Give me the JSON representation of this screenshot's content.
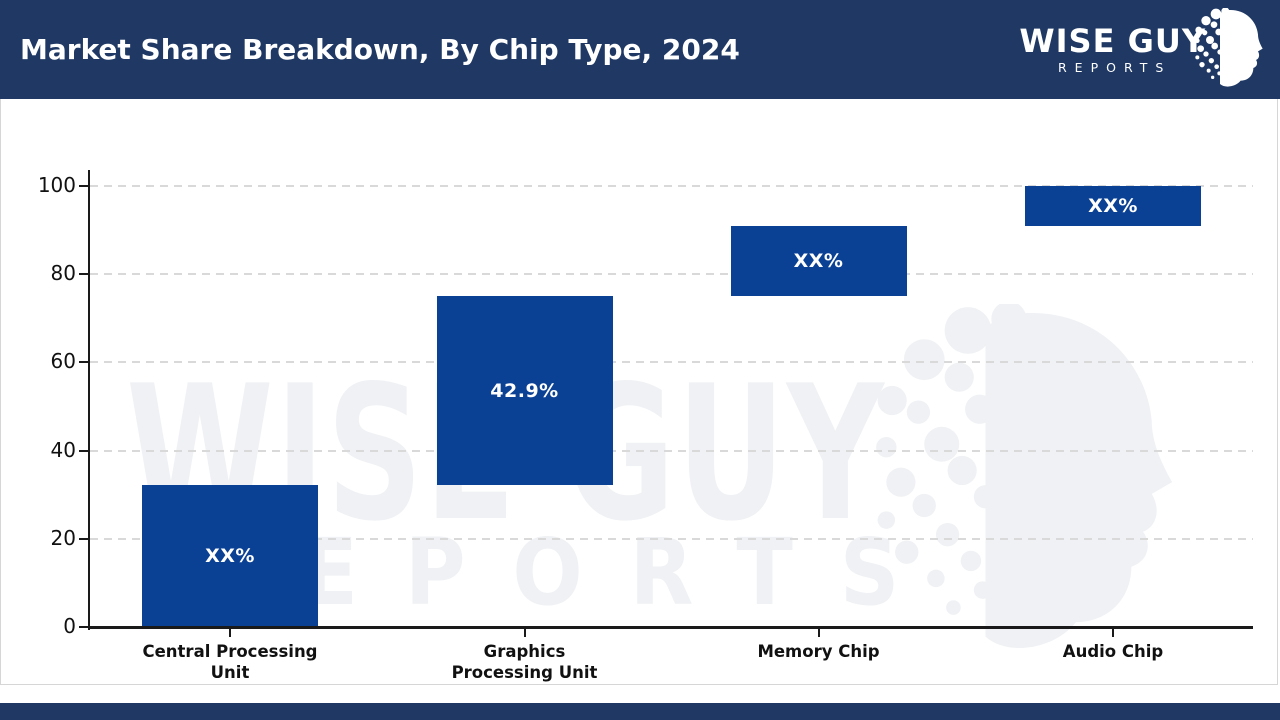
{
  "header": {
    "title": "Market Share Breakdown, By Chip Type, 2024",
    "logo": {
      "name": "WISE GUY",
      "sub": "REPORTS"
    }
  },
  "watermark": {
    "name": "WISE GUY",
    "sub": "REPORTS"
  },
  "colors": {
    "navy": "#1f3864",
    "bar": "#0b4194",
    "bar_label": "#ffffff",
    "grid": "#d9d9d9",
    "axis": "#1a1a1a",
    "text": "#111111",
    "watermark": "#eff1f4",
    "frame": "#d6d6d6"
  },
  "chart_data": {
    "type": "bar",
    "subtype": "waterfall-floating-bars",
    "title": "Market Share Breakdown, By Chip Type, 2024",
    "categories": [
      "Central Processing\nUnit",
      "Graphics\nProcessing Unit",
      "Memory Chip",
      "Audio Chip"
    ],
    "series": [
      {
        "name": "Market Share (%)",
        "bars": [
          {
            "category": "Central Processing Unit",
            "start": 0,
            "end": 32.1,
            "value": 32.1,
            "label": "XX%"
          },
          {
            "category": "Graphics Processing Unit",
            "start": 32.1,
            "end": 75,
            "value": 42.9,
            "label": "42.9%"
          },
          {
            "category": "Memory Chip",
            "start": 75,
            "end": 91,
            "value": 16,
            "label": "XX%"
          },
          {
            "category": "Audio Chip",
            "start": 91,
            "end": 100,
            "value": 9,
            "label": "XX%"
          }
        ]
      }
    ],
    "ylim": [
      0,
      100
    ],
    "yticks": [
      0,
      20,
      40,
      60,
      80,
      100
    ],
    "grid": "dashed-horizontal",
    "legend": "none"
  }
}
